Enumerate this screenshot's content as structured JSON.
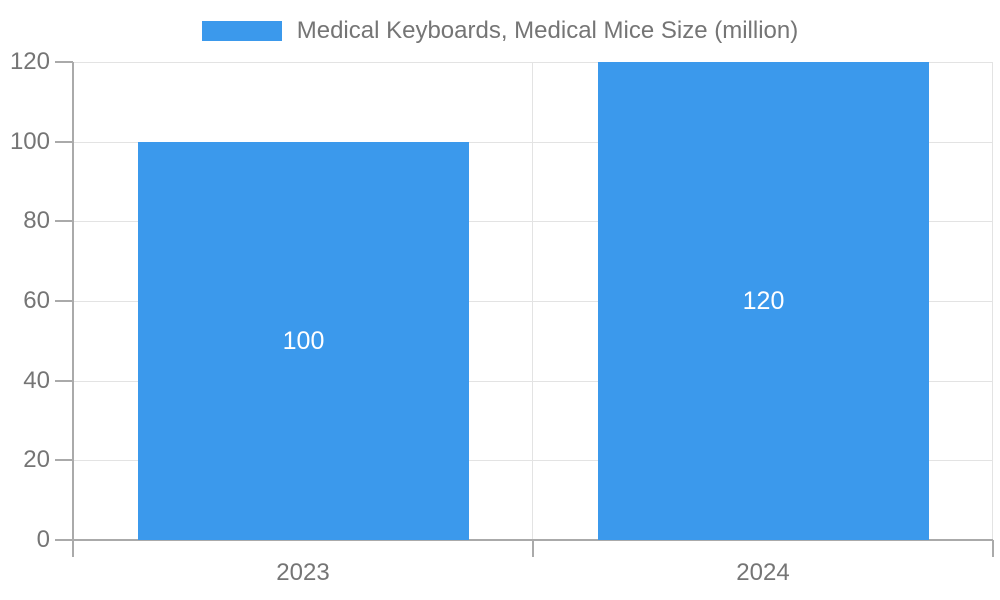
{
  "legend": {
    "label": "Medical Keyboards, Medical Mice Size (million)"
  },
  "chart_data": {
    "type": "bar",
    "title": "",
    "categories": [
      "2023",
      "2024"
    ],
    "series": [
      {
        "name": "Medical Keyboards, Medical Mice Size (million)",
        "values": [
          100,
          120
        ]
      }
    ],
    "data_labels": [
      "100",
      "120"
    ],
    "xlabel": "",
    "ylabel": "",
    "ylim": [
      0,
      120
    ],
    "yticks": [
      0,
      20,
      40,
      60,
      80,
      100,
      120
    ],
    "grid": true,
    "legend_position": "top-center",
    "bar_width_fraction": 0.72,
    "colors": {
      "bar": "#3B99EC",
      "axis_text": "#757575",
      "data_label": "#FFFFFF",
      "grid_line": "#E3E3E3",
      "axis_line": "#AAAAAA",
      "background": "#FFFFFF"
    }
  }
}
